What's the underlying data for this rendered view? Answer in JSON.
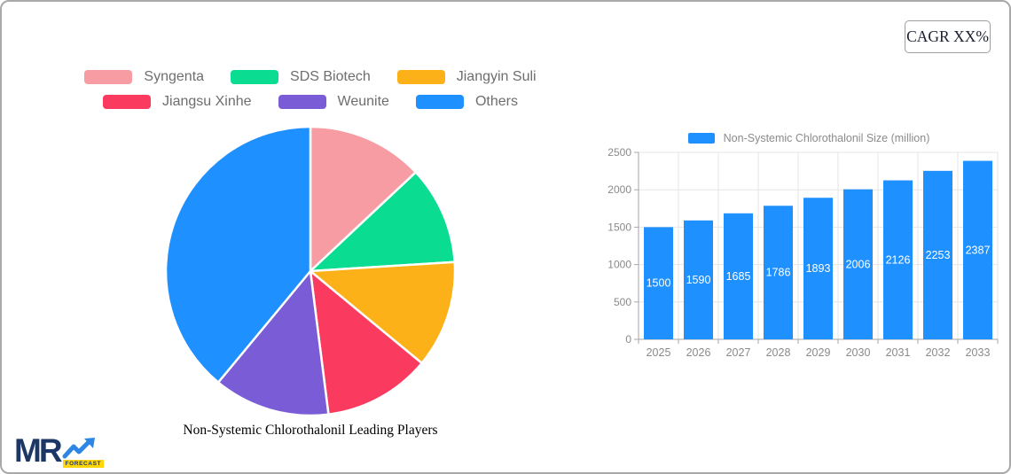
{
  "page": {
    "cagr_label": "CAGR XX%",
    "logo": {
      "text": "MR",
      "badge_text": "FORECAST"
    },
    "colors": {
      "accent_blue": "#1E90FF",
      "logo_navy": "#1c3666",
      "logo_yellow": "#ffd60a",
      "border_gray": "#a9a9a9"
    }
  },
  "chart_data": [
    {
      "type": "pie",
      "title": "Non-Systemic Chlorothalonil Leading Players",
      "labels": [
        "Syngenta",
        "SDS Biotech",
        "Jiangyin Suli",
        "Jiangsu Xinhe",
        "Weunite",
        "Others"
      ],
      "values": [
        13,
        11,
        12,
        12,
        13,
        39
      ],
      "colors": [
        "#F89CA4",
        "#0ADD92",
        "#FBB117",
        "#FA3A5E",
        "#7A5CD6",
        "#1E90FF"
      ],
      "start_angle_deg": -90,
      "direction": "clockwise",
      "legend_position": "top",
      "legend_columns": 3,
      "slice_border_color": "#FFFFFF"
    },
    {
      "type": "bar",
      "legend": "Non-Systemic Chlorothalonil Size (million)",
      "categories": [
        "2025",
        "2026",
        "2027",
        "2028",
        "2029",
        "2030",
        "2031",
        "2032",
        "2033"
      ],
      "values": [
        1500,
        1590,
        1685,
        1786,
        1893,
        2006,
        2126,
        2253,
        2387
      ],
      "bar_color": "#1E90FF",
      "value_label_color": "#FFFFFF",
      "ylim": [
        0,
        2500
      ],
      "ytick_step": 500,
      "yticks": [
        0,
        500,
        1000,
        1500,
        2000,
        2500
      ],
      "grid": true,
      "tick_color": "#8a8a8a"
    }
  ]
}
